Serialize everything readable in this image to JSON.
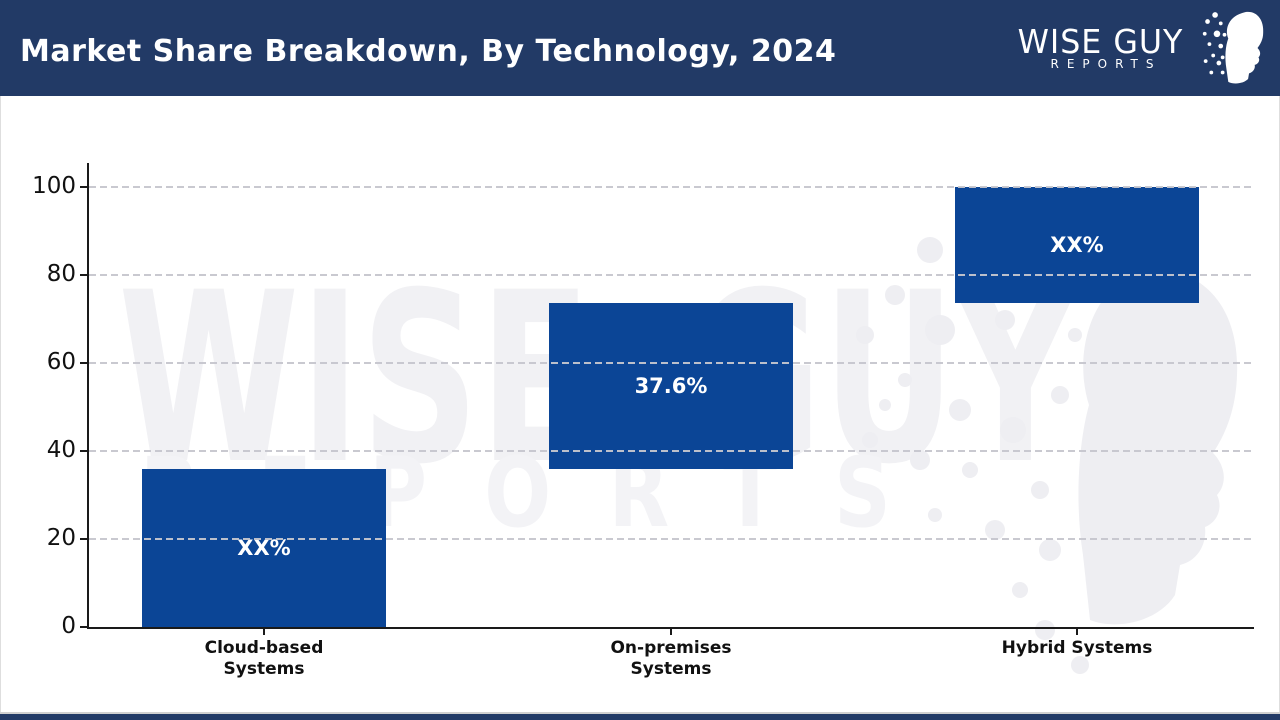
{
  "header": {
    "title": "Market Share Breakdown, By Technology, 2024",
    "logo_line1": "WISE GUY",
    "logo_line2": "REPORTS"
  },
  "watermark": {
    "line1": "WISE GUY",
    "line2": "REPORTS"
  },
  "chart_data": {
    "type": "bar",
    "variant": "waterfall",
    "title": "Market Share Breakdown, By Technology, 2024",
    "categories": [
      "Cloud-based Systems",
      "On-premises Systems",
      "Hybrid Systems"
    ],
    "categories_lines": [
      [
        "Cloud-based",
        "Systems"
      ],
      [
        "On-premises",
        "Systems"
      ],
      [
        "Hybrid Systems"
      ]
    ],
    "segments": [
      {
        "category": "Cloud-based Systems",
        "start": 0,
        "end": 36,
        "label": "XX%"
      },
      {
        "category": "On-premises Systems",
        "start": 36,
        "end": 73.6,
        "label": "37.6%"
      },
      {
        "category": "Hybrid Systems",
        "start": 73.6,
        "end": 100,
        "label": "XX%"
      }
    ],
    "values": [
      36,
      37.6,
      26.4
    ],
    "yticks": [
      0,
      20,
      40,
      60,
      80,
      100
    ],
    "ylim": [
      0,
      105
    ],
    "xlabel": "",
    "ylabel": "",
    "grid": "horizontal-dashed",
    "legend": "none",
    "bar_color": "#0b4596"
  },
  "colors": {
    "header_bg": "#223a66",
    "footer_bg": "#223a66",
    "bar": "#0b4596",
    "bar_label_text": "#ffffff",
    "title_text": "#ffffff",
    "axis": "#1a1a1a",
    "gridline": "#c6c6ce",
    "watermark": "#f1f1f4"
  }
}
